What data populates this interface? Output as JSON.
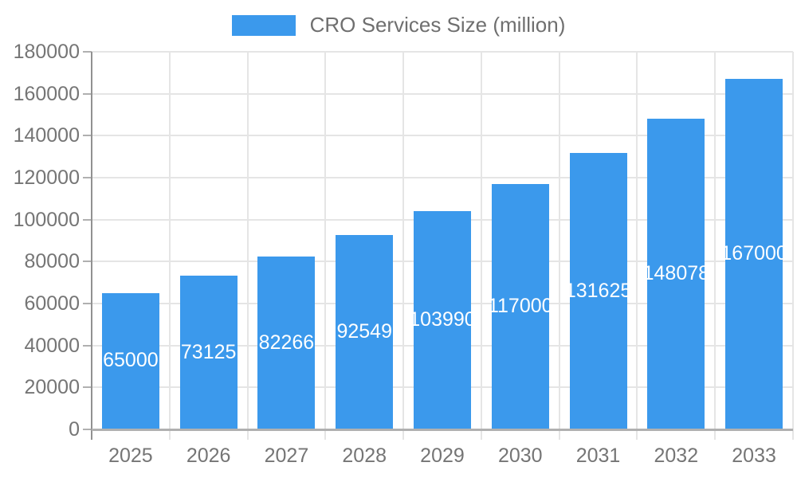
{
  "legend": {
    "label": "CRO Services Size (million)"
  },
  "chart_data": {
    "type": "bar",
    "title": "CRO Services Size (million)",
    "categories": [
      "2025",
      "2026",
      "2027",
      "2028",
      "2029",
      "2030",
      "2031",
      "2032",
      "2033"
    ],
    "values": [
      65000,
      73125,
      82266,
      92549,
      103990,
      117000,
      131625,
      148078,
      167000
    ],
    "series": [
      {
        "name": "CRO Services Size (million)",
        "values": [
          65000,
          73125,
          82266,
          92549,
          103990,
          117000,
          131625,
          148078,
          167000
        ]
      }
    ],
    "xlabel": "",
    "ylabel": "",
    "ylim": [
      0,
      180000
    ],
    "ytick_step": 20000,
    "ytick_labels": [
      "0",
      "20000",
      "40000",
      "60000",
      "80000",
      "100000",
      "120000",
      "140000",
      "160000",
      "180000"
    ],
    "grid": true,
    "legend_position": "top-center",
    "bar_color": "#3b99ec",
    "bar_label_color": "#ffffff",
    "axis_text_color": "#757575",
    "grid_color": "#e5e5e5",
    "x_axis_line_color": "#b0b0b0",
    "y_axis_line_color": "#919191"
  }
}
